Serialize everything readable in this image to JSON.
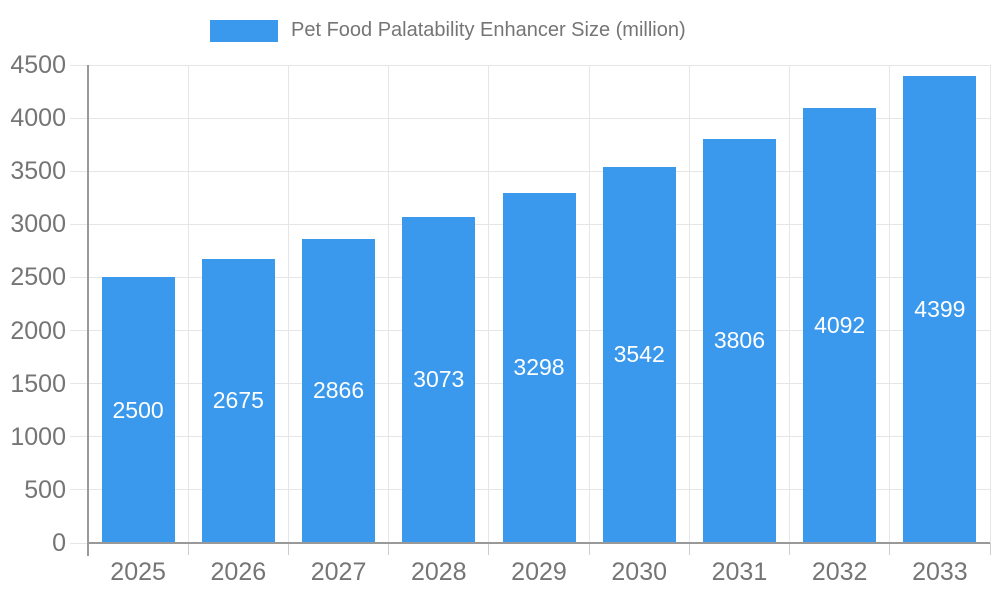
{
  "chart_data": {
    "type": "bar",
    "title": "Pet Food Palatability Enhancer Size (million)",
    "categories": [
      "2025",
      "2026",
      "2027",
      "2028",
      "2029",
      "2030",
      "2031",
      "2032",
      "2033"
    ],
    "values": [
      2500,
      2675,
      2866,
      3073,
      3298,
      3542,
      3806,
      4092,
      4399
    ],
    "xlabel": "",
    "ylabel": "",
    "ylim": [
      0,
      4500
    ],
    "ytick_step": 500,
    "ytick_labels": [
      "0",
      "500",
      "1000",
      "1500",
      "2000",
      "2500",
      "3000",
      "3500",
      "4000",
      "4500"
    ],
    "grid": true,
    "legend_position": "top-center",
    "bar_labels_shown": true,
    "colors": {
      "bar": "#3A99EC",
      "bar_label": "#FFFFFF",
      "axis_text": "#757575",
      "legend_text": "#757575",
      "gridline": "#E6E6E6",
      "axis_line": "#999999",
      "background": "#FFFFFF"
    }
  }
}
